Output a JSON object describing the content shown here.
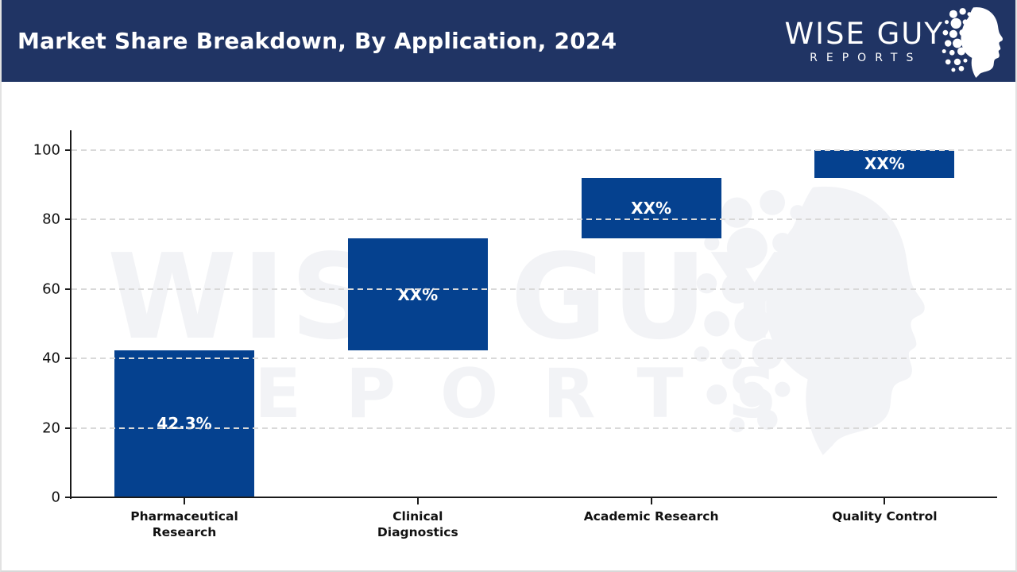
{
  "header": {
    "title": "Market Share Breakdown, By Application, 2024",
    "bg_color": "#203464",
    "logo": {
      "wordmark": "WISE GUY",
      "subtext": "REPORTS"
    }
  },
  "watermark": {
    "line1": "WISE GUY",
    "line2": "REPORTS"
  },
  "chart_data": {
    "type": "bar",
    "subtype": "waterfall",
    "title": "Market Share Breakdown, By Application, 2024",
    "xlabel": "",
    "ylabel": "",
    "ylim": [
      0,
      100
    ],
    "yticks": [
      0,
      20,
      40,
      60,
      80,
      100
    ],
    "grid": {
      "axis": "y",
      "style": "dashed",
      "color": "#d9d9d9",
      "on_top_of_bars": true
    },
    "bar_color": "#05418f",
    "axis_color": "#1a1a1a",
    "value_label_color": "#ffffff",
    "categories": [
      "Pharmaceutical\nResearch",
      "Clinical\nDiagnostics",
      "Academic Research",
      "Quality Control"
    ],
    "segments": [
      {
        "category": "Pharmaceutical Research",
        "start": 0,
        "end": 42.3,
        "value": 42.3,
        "label": "42.3%"
      },
      {
        "category": "Clinical Diagnostics",
        "start": 42.3,
        "end": 74.5,
        "value": 32.2,
        "label": "XX%"
      },
      {
        "category": "Academic Research",
        "start": 74.5,
        "end": 91.9,
        "value": 17.4,
        "label": "XX%"
      },
      {
        "category": "Quality Control",
        "start": 91.9,
        "end": 100,
        "value": 8.1,
        "label": "XX%"
      }
    ]
  }
}
